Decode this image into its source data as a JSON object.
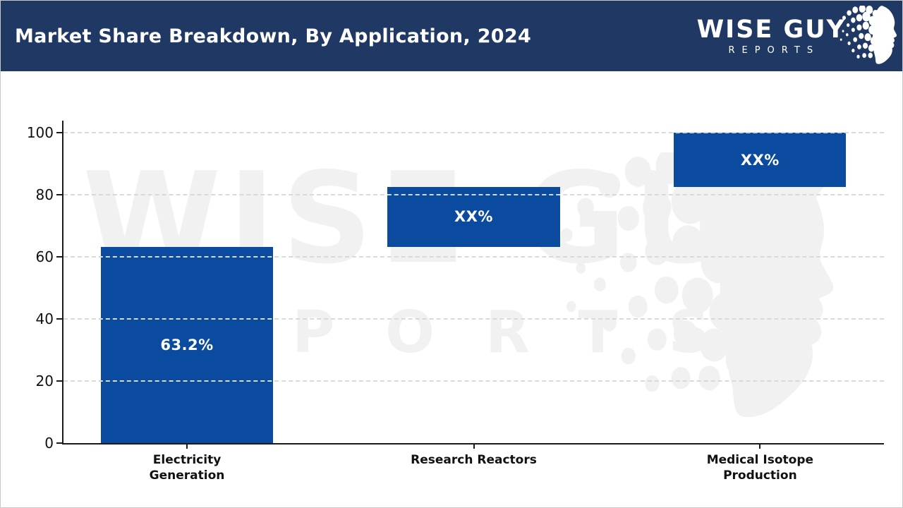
{
  "header": {
    "title": "Market Share Breakdown, By Application, 2024",
    "logo": {
      "line1": "WISE GUY",
      "line2": "REPORTS"
    }
  },
  "watermark": {
    "line1": "WISE GUY",
    "line2": "REPORTS"
  },
  "colors": {
    "header_bg": "#1f3864",
    "bar_fill": "#0a4b9f",
    "bar_label_text": "#ffffff",
    "axis": "#1a1a1a",
    "gridline": "#d9d9d9",
    "watermark": "#f1f1f1",
    "page_bg": "#ffffff"
  },
  "chart_data": {
    "type": "bar",
    "subtype": "stacked-waterfall-segments",
    "title": "Market Share Breakdown, By Application, 2024",
    "xlabel": "",
    "ylabel": "",
    "categories": [
      "Electricity Generation",
      "Research Reactors",
      "Medical Isotope Production"
    ],
    "categories_lines": [
      [
        "Electricity",
        "Generation"
      ],
      [
        "Research Reactors"
      ],
      [
        "Medical Isotope",
        "Production"
      ]
    ],
    "bars": [
      {
        "category": "Electricity Generation",
        "label": "63.2%",
        "start": 0,
        "end": 63.2,
        "value_shown": "63.2%"
      },
      {
        "category": "Research Reactors",
        "label": "XX%",
        "start": 63.2,
        "end": 82.5,
        "value_shown": "XX%"
      },
      {
        "category": "Medical Isotope Production",
        "label": "XX%",
        "start": 82.5,
        "end": 100,
        "value_shown": "XX%"
      }
    ],
    "yticks": [
      0,
      20,
      40,
      60,
      80,
      100
    ],
    "ylim": [
      0,
      104
    ],
    "grid": "horizontal dashed, drawn over bars",
    "legend": "none"
  }
}
